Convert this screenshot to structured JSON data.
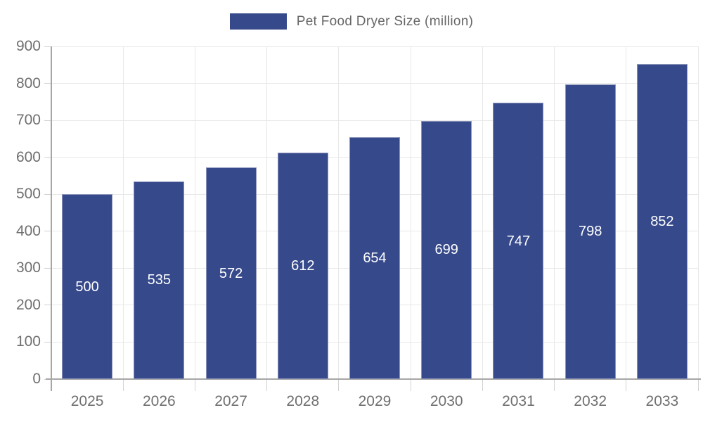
{
  "legend": {
    "swatch_color": "#36498B"
  },
  "chart_data": {
    "type": "bar",
    "title": "Pet Food Dryer Size (million)",
    "categories": [
      "2025",
      "2026",
      "2027",
      "2028",
      "2029",
      "2030",
      "2031",
      "2032",
      "2033"
    ],
    "values": [
      500,
      535,
      572,
      612,
      654,
      699,
      747,
      798,
      852
    ],
    "xlabel": "",
    "ylabel": "",
    "ylim": [
      0,
      900
    ],
    "ytick_interval": 100,
    "yticks": [
      0,
      100,
      200,
      300,
      400,
      500,
      600,
      700,
      800,
      900
    ],
    "grid": true,
    "legend_position": "top-center",
    "bar_color": "#36498B",
    "bar_border_color": "#8d96bb",
    "value_label_color": "#ffffff",
    "grid_color": "#e8e8e8",
    "axis_color": "#a6a6a6",
    "tick_color": "#d2d2d2",
    "tick_label_color": "#6f6f6f",
    "background_color": "#ffffff"
  }
}
